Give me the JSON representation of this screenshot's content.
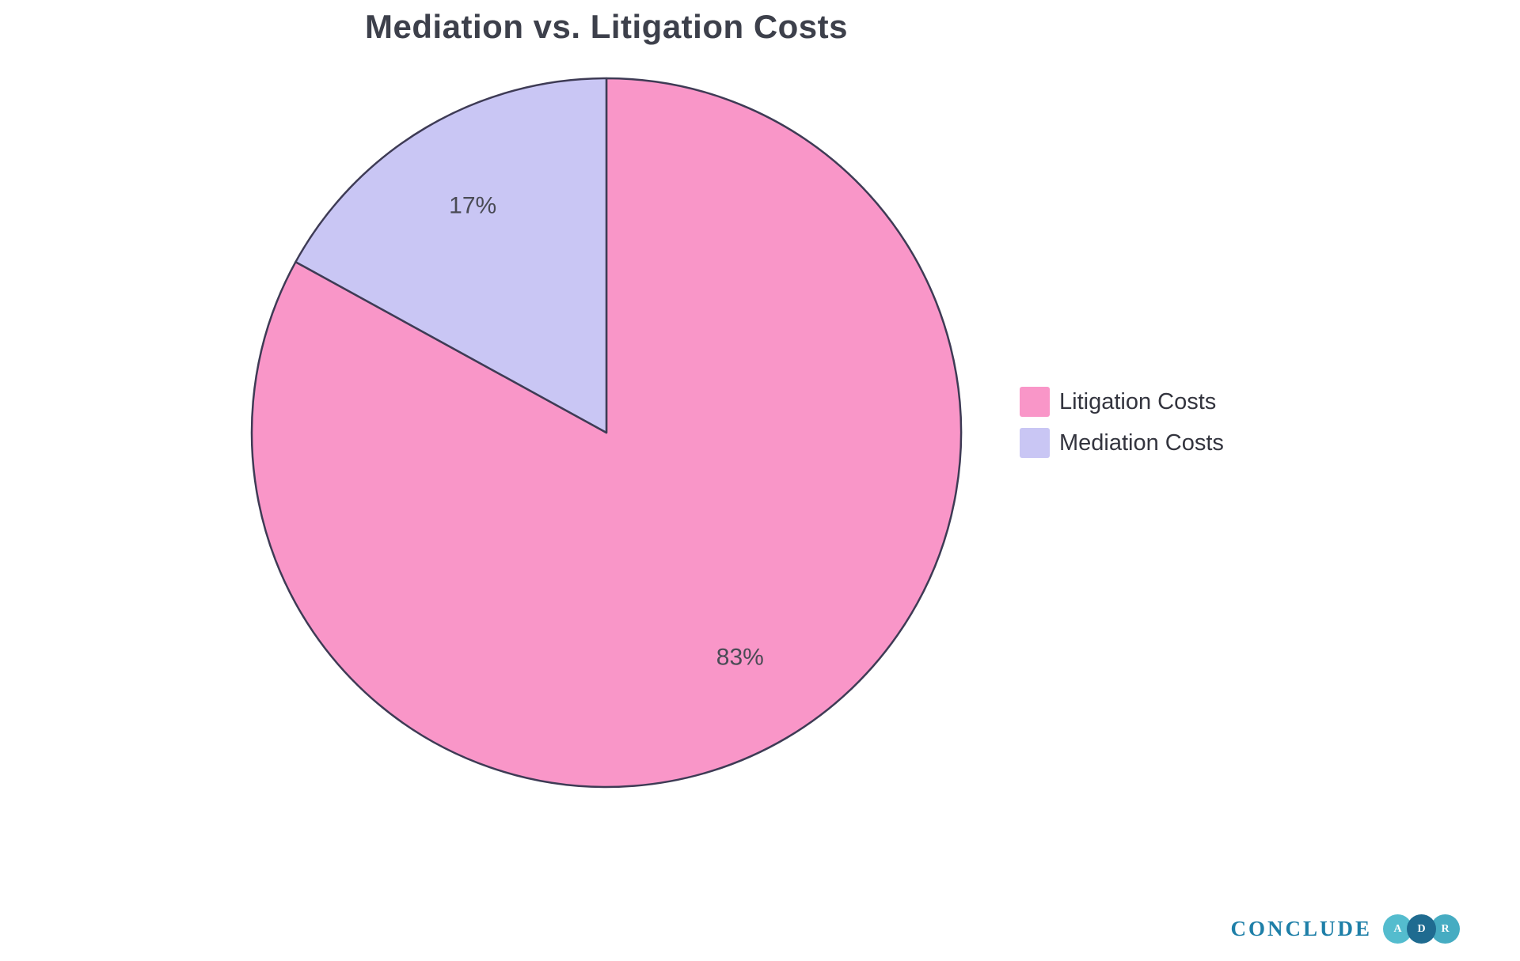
{
  "title": "Mediation vs. Litigation Costs",
  "chart_data": {
    "type": "pie",
    "title": "Mediation vs. Litigation Costs",
    "categories": [
      "Litigation Costs",
      "Mediation Costs"
    ],
    "values": [
      83,
      17
    ],
    "percent_labels": [
      "83%",
      "17%"
    ],
    "colors": [
      "#f996c8",
      "#c9c6f4"
    ],
    "stroke_color": "#3e3b55",
    "start_angle": "top",
    "direction": "clockwise",
    "legend_position": "right",
    "label_position": "inside"
  },
  "legend": {
    "items": [
      {
        "label": "Litigation Costs"
      },
      {
        "label": "Mediation Costs"
      }
    ]
  },
  "branding": {
    "wordmark": "CONCLUDE",
    "wordmark_color": "#1e7fa8",
    "badges": [
      "A",
      "D",
      "R"
    ],
    "badge_colors": [
      "#54bcce",
      "#1f6b90",
      "#46acc2"
    ]
  }
}
